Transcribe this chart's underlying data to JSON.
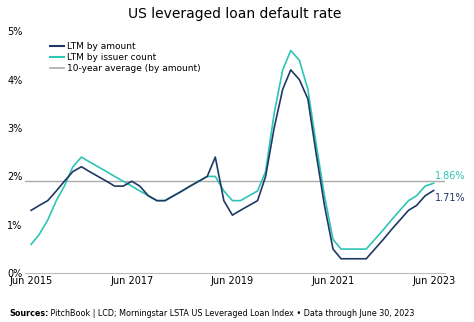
{
  "title": "US leveraged loan default rate",
  "source_bold": "Sources:",
  "source_rest": " PitchBook | LCD; Morningstar LSTA US Leveraged Loan Index • Data through June 30, 2023",
  "color_amount": "#1f3864",
  "color_issuer": "#2ec4b6",
  "color_avg": "#aaaaaa",
  "label_amount": "LTM by amount",
  "label_issuer": "LTM by issuer count",
  "label_avg": "10-year average (by amount)",
  "annotation_issuer": "1.86%",
  "annotation_amount": "1.71%",
  "ylim": [
    0.0,
    0.051
  ],
  "yticks": [
    0,
    0.01,
    0.02,
    0.03,
    0.04,
    0.05
  ],
  "yticklabels": [
    "0%",
    "1%",
    "2%",
    "3%",
    "4%",
    "5%"
  ],
  "avg_line": 0.019,
  "x_dates": [
    2015.42,
    2015.58,
    2015.75,
    2015.92,
    2016.08,
    2016.25,
    2016.42,
    2016.58,
    2016.75,
    2016.92,
    2017.08,
    2017.25,
    2017.42,
    2017.58,
    2017.75,
    2017.92,
    2018.08,
    2018.25,
    2018.42,
    2018.58,
    2018.75,
    2018.92,
    2019.08,
    2019.25,
    2019.42,
    2019.58,
    2019.75,
    2019.92,
    2020.08,
    2020.25,
    2020.42,
    2020.58,
    2020.75,
    2020.92,
    2021.08,
    2021.25,
    2021.42,
    2021.58,
    2021.75,
    2021.92,
    2022.08,
    2022.25,
    2022.42,
    2022.58,
    2022.75,
    2022.92,
    2023.08,
    2023.25,
    2023.42
  ],
  "ltm_amount": [
    0.013,
    0.014,
    0.015,
    0.017,
    0.019,
    0.021,
    0.022,
    0.021,
    0.02,
    0.019,
    0.018,
    0.018,
    0.019,
    0.018,
    0.016,
    0.015,
    0.015,
    0.016,
    0.017,
    0.018,
    0.019,
    0.02,
    0.024,
    0.015,
    0.012,
    0.013,
    0.014,
    0.015,
    0.02,
    0.03,
    0.038,
    0.042,
    0.04,
    0.036,
    0.025,
    0.014,
    0.005,
    0.003,
    0.003,
    0.003,
    0.003,
    0.005,
    0.007,
    0.009,
    0.011,
    0.013,
    0.014,
    0.016,
    0.0171
  ],
  "ltm_issuer": [
    0.006,
    0.008,
    0.011,
    0.015,
    0.018,
    0.022,
    0.024,
    0.023,
    0.022,
    0.021,
    0.02,
    0.019,
    0.018,
    0.017,
    0.016,
    0.015,
    0.015,
    0.016,
    0.017,
    0.018,
    0.019,
    0.02,
    0.02,
    0.017,
    0.015,
    0.015,
    0.016,
    0.017,
    0.021,
    0.033,
    0.042,
    0.046,
    0.044,
    0.038,
    0.027,
    0.016,
    0.007,
    0.005,
    0.005,
    0.005,
    0.005,
    0.007,
    0.009,
    0.011,
    0.013,
    0.015,
    0.016,
    0.018,
    0.0186
  ],
  "xlim": [
    2015.3,
    2023.65
  ],
  "xticks": [
    2015.42,
    2017.42,
    2019.42,
    2021.42,
    2023.42
  ],
  "xticklabels": [
    "Jun 2015",
    "Jun 2017",
    "Jun 2019",
    "Jun 2021",
    "Jun 2023"
  ]
}
